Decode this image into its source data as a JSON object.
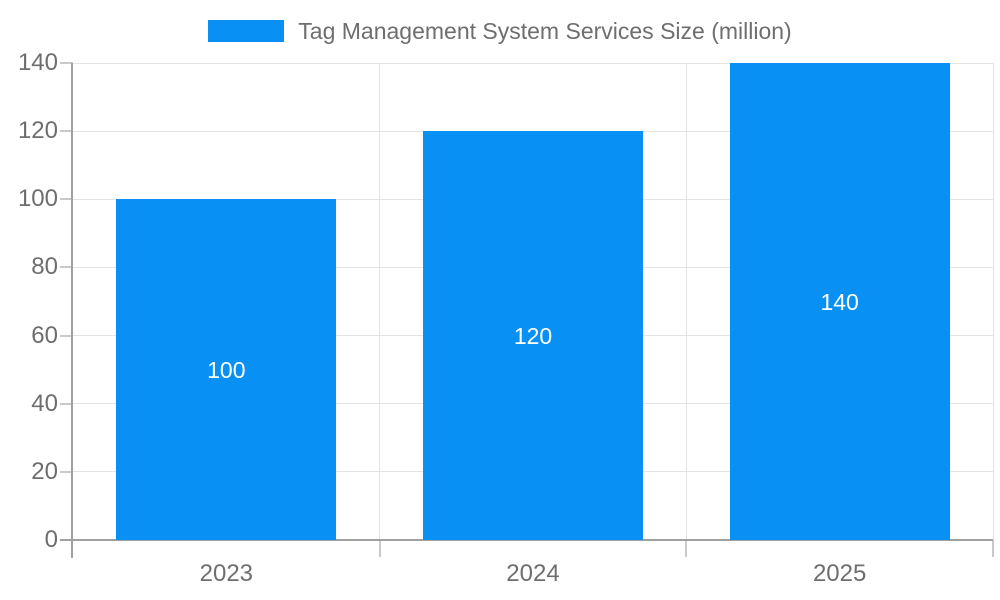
{
  "legend": {
    "label": "Tag Management System Services Size (million)"
  },
  "colors": {
    "bar": "#0890f5",
    "bar_label": "#ffffff",
    "gridline": "#e4e4e4",
    "tick": "#c9c9c9",
    "axis": "#a0a0a0",
    "text": "#6e6e6e",
    "background": "#ffffff"
  },
  "chart_data": {
    "type": "bar",
    "title": "",
    "categories": [
      "2023",
      "2024",
      "2025"
    ],
    "values": [
      100,
      120,
      140
    ],
    "bar_labels": [
      "100",
      "120",
      "140"
    ],
    "series_name": "Tag Management System Services Size (million)",
    "legend_entries": [
      "Tag Management System Services Size (million)"
    ],
    "legend_position": "top-center",
    "xlabel": "",
    "ylabel": "",
    "ylim": [
      0,
      140
    ],
    "yticks": [
      0,
      20,
      40,
      60,
      80,
      100,
      120,
      140
    ],
    "grid": true
  }
}
